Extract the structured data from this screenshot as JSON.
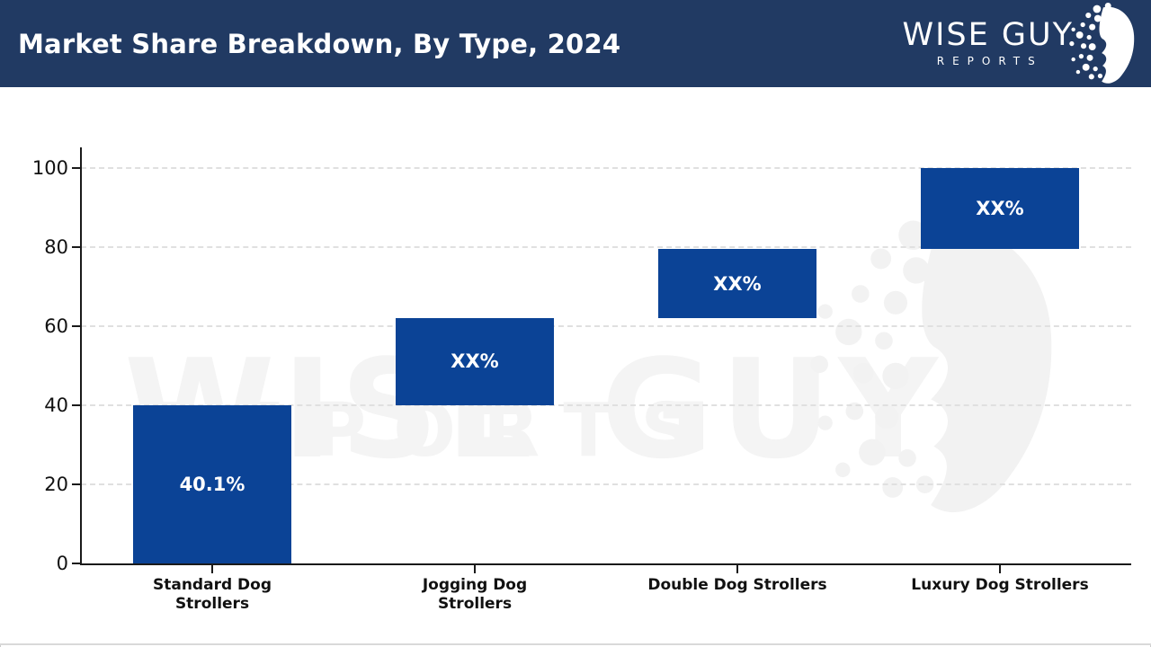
{
  "header": {
    "title": "Market Share Breakdown, By Type, 2024",
    "bg_color": "#213a63",
    "logo": {
      "line1": "WISE GUY",
      "line2": "REPORTS"
    }
  },
  "watermark": {
    "line1": "WISE GUY",
    "line2": "REPORTS"
  },
  "chart_data": {
    "type": "bar",
    "subtype": "waterfall-segments",
    "title": "Market Share Breakdown, By Type, 2024",
    "categories": [
      "Standard Dog Strollers",
      "Jogging Dog Strollers",
      "Double Dog Strollers",
      "Luxury Dog Strollers"
    ],
    "segments": [
      {
        "label": "40.1%",
        "start": 0,
        "end": 40.1
      },
      {
        "label": "XX%",
        "start": 40.1,
        "end": 62
      },
      {
        "label": "XX%",
        "start": 62,
        "end": 79.5
      },
      {
        "label": "XX%",
        "start": 79.5,
        "end": 100
      }
    ],
    "bar_color": "#0b4396",
    "label_color": "#ffffff",
    "ylim": [
      0,
      100
    ],
    "yticks": [
      0,
      20,
      40,
      60,
      80,
      100
    ],
    "xlabel": "",
    "ylabel": "",
    "grid": "horizontal-dashed",
    "legend": "none"
  }
}
